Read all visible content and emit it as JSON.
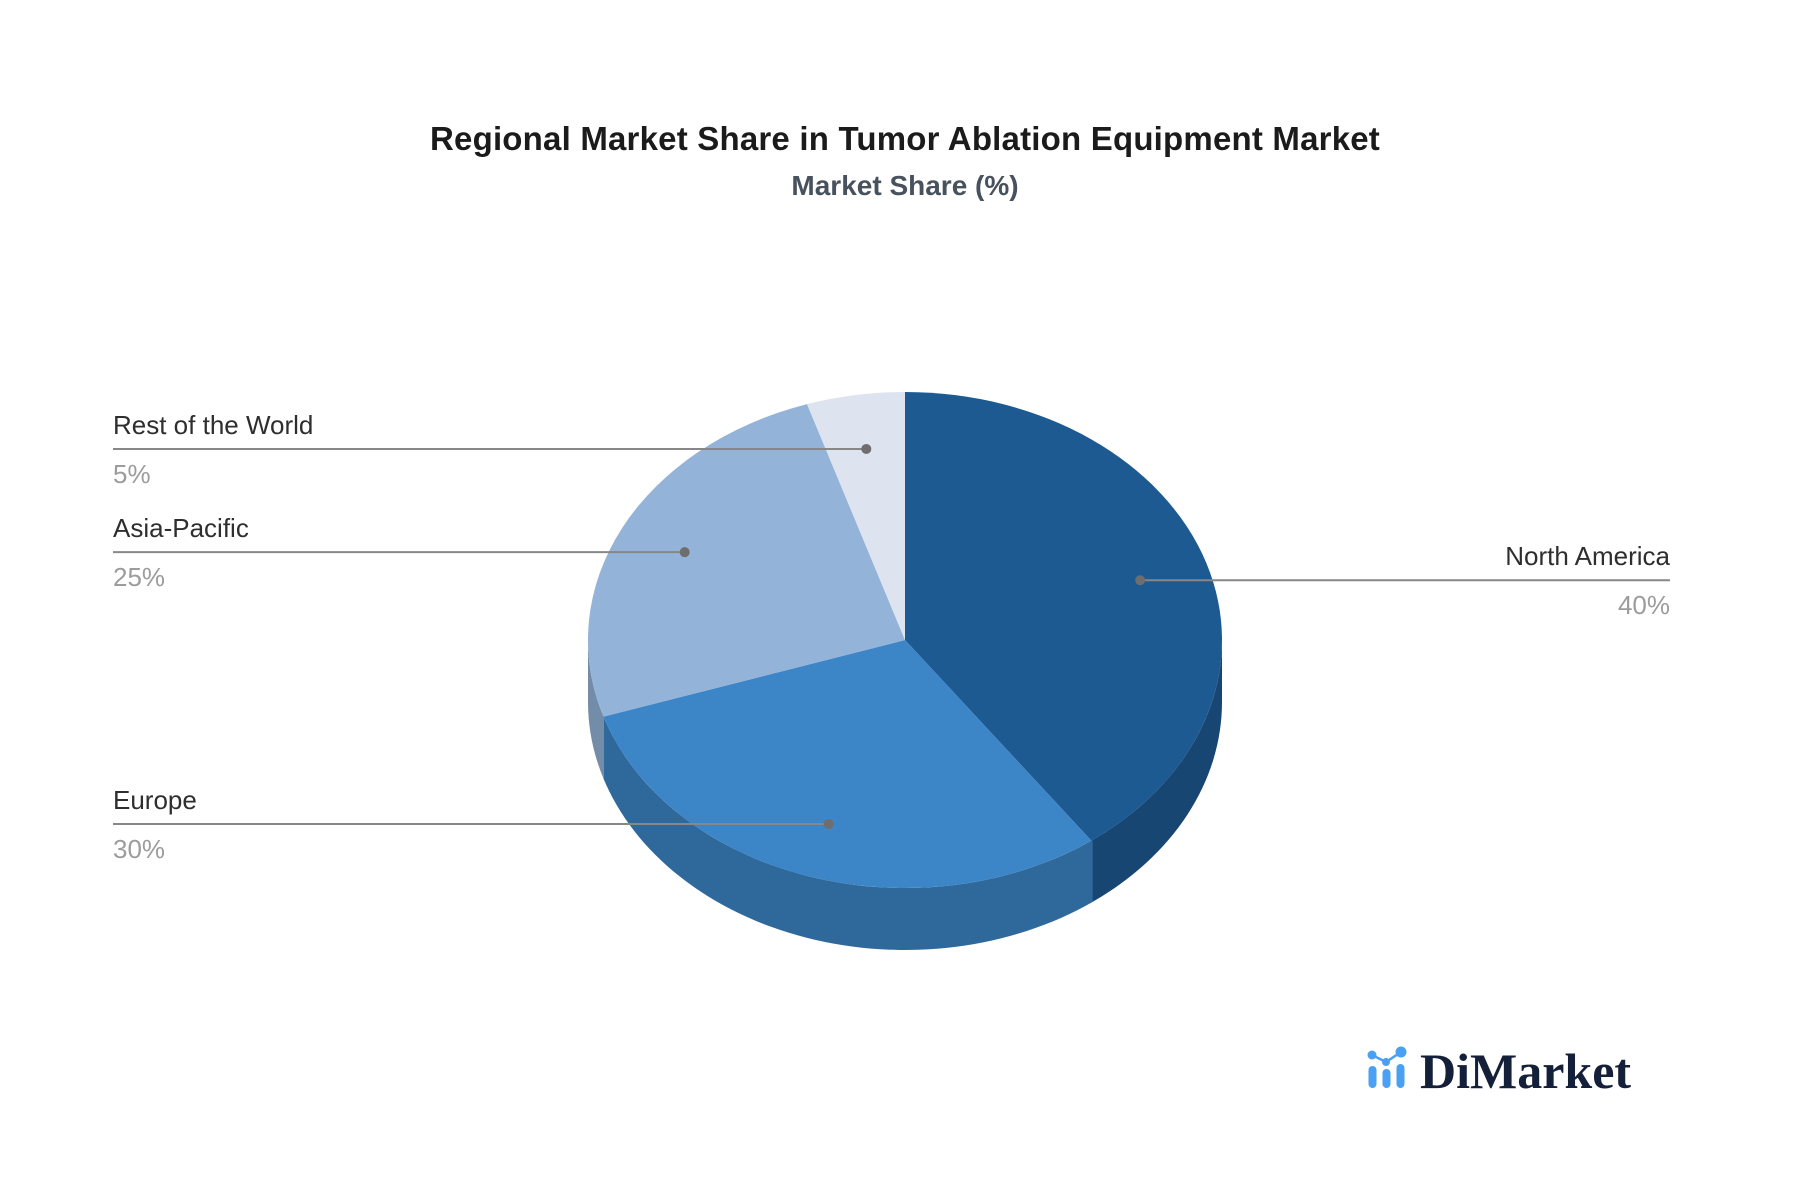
{
  "title": "Regional Market Share in Tumor Ablation Equipment Market",
  "subtitle": "Market Share (%)",
  "logo": {
    "text": "DiMarket",
    "icon": "bar-line-chart-icon"
  },
  "colors": {
    "leader_line": "#878787",
    "leader_dot": "#6e6e6e",
    "label_text": "#2e2e2e",
    "value_text": "#9c9c9c",
    "title_text": "#1b1b1b",
    "subtitle_text": "#47525e",
    "logo_text": "#141f3a",
    "logo_icon": "#4aa0f2"
  },
  "chart_data": {
    "type": "pie",
    "style": "3d",
    "title": "Regional Market Share in Tumor Ablation Equipment Market",
    "subtitle": "Market Share (%)",
    "unit": "%",
    "start_angle_deg": -90,
    "direction": "clockwise",
    "legend": "none",
    "slices": [
      {
        "label": "North America",
        "value": 40,
        "display": "40%",
        "color": "#1d5a92"
      },
      {
        "label": "Europe",
        "value": 30,
        "display": "30%",
        "color": "#3c86c8"
      },
      {
        "label": "Asia-Pacific",
        "value": 25,
        "display": "25%",
        "color": "#93b3d8"
      },
      {
        "label": "Rest of the World",
        "value": 5,
        "display": "5%",
        "color": "#dde4ef"
      }
    ]
  }
}
